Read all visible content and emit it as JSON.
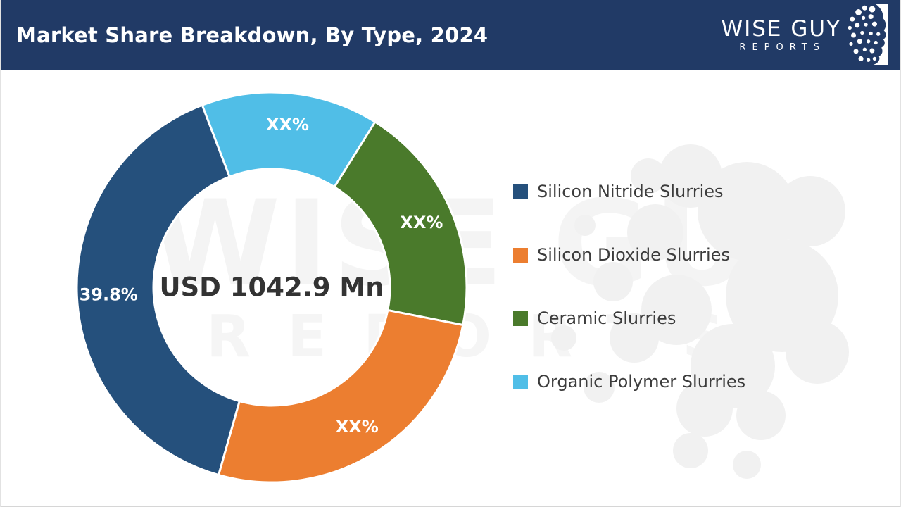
{
  "header": {
    "title": "Market Share Breakdown, By Type, 2024",
    "logo": {
      "line1": "WISE GUY",
      "line2": "REPORTS"
    }
  },
  "chart_data": {
    "type": "pie",
    "subtype": "donut",
    "title": "Market Share Breakdown, By Type, 2024",
    "center_label": "USD 1042.9 Mn",
    "start_angle_clockwise_from_top_deg": -20.9,
    "draw_direction": "counterclockwise",
    "legend_position": "right",
    "segments": [
      {
        "label": "Silicon Nitride Slurries",
        "value_pct": 39.8,
        "data_label": "39.8%",
        "color": "#25507C"
      },
      {
        "label": "Silicon Dioxide Slurries",
        "value_pct": 26.3,
        "data_label": "XX%",
        "color": "#EC7E30"
      },
      {
        "label": "Ceramic Slurries",
        "value_pct": 19.2,
        "data_label": "XX%",
        "color": "#4A7A2B"
      },
      {
        "label": "Organic Polymer Slurries",
        "value_pct": 14.7,
        "data_label": "XX%",
        "color": "#50BEE7"
      }
    ]
  },
  "watermark": {
    "line1": "WISE GUY",
    "line2": "REPORTS"
  },
  "colors": {
    "header_bg": "#213A66",
    "center_text": "#333333",
    "legend_text": "#3C3C3C",
    "slice_separator": "#FFFFFF"
  }
}
